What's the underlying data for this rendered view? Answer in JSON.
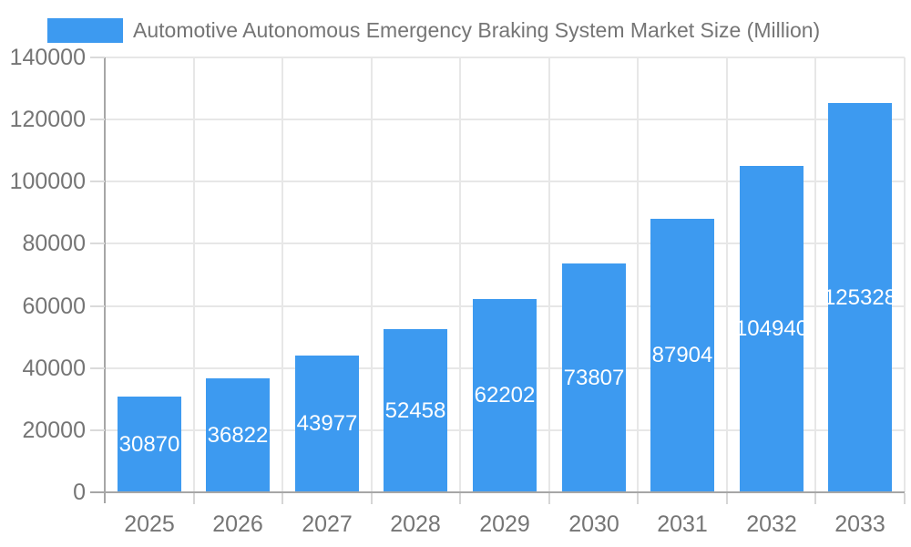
{
  "legend": {
    "label": "Automotive Autonomous Emergency Braking System Market Size (Million)",
    "swatch_color": "#3D9AF0"
  },
  "chart_data": {
    "type": "bar",
    "title": "Automotive Autonomous Emergency Braking System Market Size (Million)",
    "categories": [
      "2025",
      "2026",
      "2027",
      "2028",
      "2029",
      "2030",
      "2031",
      "2032",
      "2033"
    ],
    "values": [
      30870,
      36822,
      43977,
      52458,
      62202,
      73807,
      87904,
      104940,
      125328
    ],
    "xlabel": "",
    "ylabel": "",
    "ylim": [
      0,
      140000
    ],
    "yticks": [
      0,
      20000,
      40000,
      60000,
      80000,
      100000,
      120000,
      140000
    ],
    "grid": true,
    "legend_position": "top-left",
    "value_label_position": "inside-middle",
    "colors": {
      "bar": "#3D9AF0",
      "value_label": "#FFFFFF",
      "axis_text": "#757575",
      "grid_line": "#E7E7E7",
      "axis_line": "#A6A6A6"
    }
  }
}
